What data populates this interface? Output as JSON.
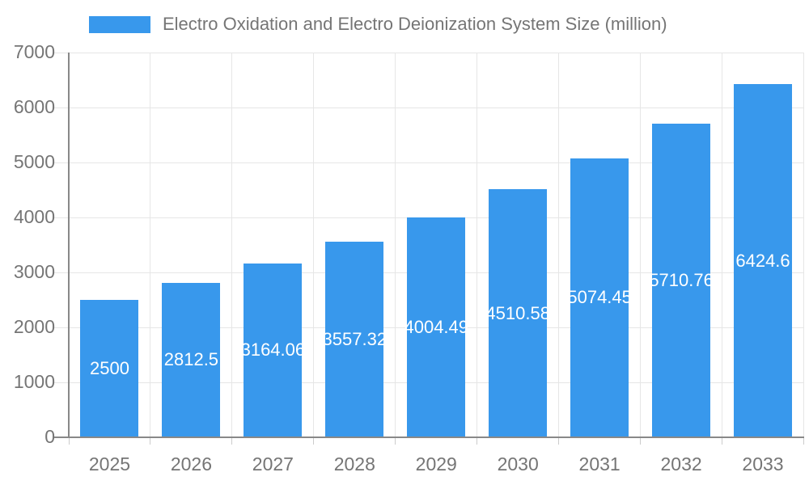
{
  "legend": {
    "label": "Electro Oxidation and Electro Deionization System Size (million)"
  },
  "chart_data": {
    "type": "bar",
    "title": "Electro Oxidation and Electro Deionization System Size (million)",
    "series_name": "Electro Oxidation and Electro Deionization System Size (million)",
    "categories": [
      "2025",
      "2026",
      "2027",
      "2028",
      "2029",
      "2030",
      "2031",
      "2032",
      "2033"
    ],
    "values": [
      2500,
      2812.5,
      3164.06,
      3557.32,
      4004.49,
      4510.58,
      5074.45,
      5710.76,
      6424.6
    ],
    "value_labels": [
      "2500",
      "2812.5",
      "3164.06",
      "3557.32",
      "4004.49",
      "4510.58",
      "5074.45",
      "5710.76",
      "6424.6"
    ],
    "xlabel": "",
    "ylabel": "",
    "ylim": [
      0,
      7000
    ],
    "yticks": [
      0,
      1000,
      2000,
      3000,
      4000,
      5000,
      6000,
      7000
    ],
    "grid": true,
    "legend_position": "top-left",
    "bar_color": "#3898ec",
    "bar_label_color": "#ffffff",
    "axis_text_color": "#757575",
    "gridline_color": "#e6e6e6",
    "tick_color": "#cccccc",
    "axis_line_color": "#888888",
    "background": "#ffffff"
  }
}
